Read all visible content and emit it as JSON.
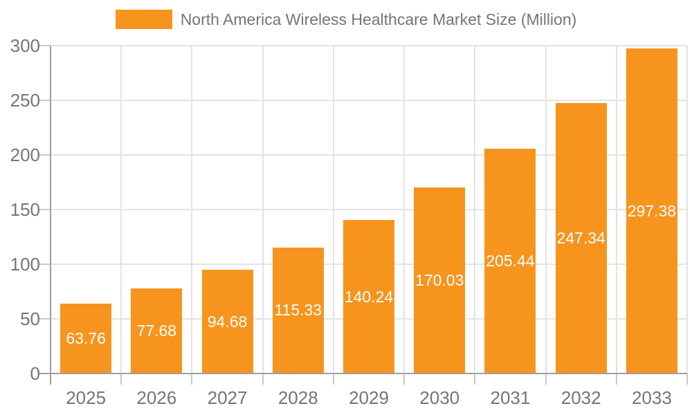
{
  "legend": {
    "label": "North America Wireless Healthcare Market Size (Million)"
  },
  "chart_data": {
    "type": "bar",
    "title": "North America Wireless Healthcare Market Size (Million)",
    "categories": [
      "2025",
      "2026",
      "2027",
      "2028",
      "2029",
      "2030",
      "2031",
      "2032",
      "2033"
    ],
    "values": [
      63.76,
      77.68,
      94.68,
      115.33,
      140.24,
      170.03,
      205.44,
      247.34,
      297.38
    ],
    "value_labels": [
      "63.76",
      "77.68",
      "94.68",
      "115.33",
      "140.24",
      "170.03",
      "205.44",
      "247.34",
      "297.38"
    ],
    "xlabel": "",
    "ylabel": "",
    "ylim": [
      0,
      300
    ],
    "yticks": [
      0,
      50,
      100,
      150,
      200,
      250,
      300
    ],
    "grid": true,
    "legend_position": "top",
    "colors": {
      "bar": "#F7941E",
      "value_label": "#FFFFFF",
      "axis": "#9E9E9E",
      "grid": "#E3E3E3",
      "tick_mark": "#C9C9C9",
      "tick_text": "#757575",
      "legend_text": "#757575",
      "background": "#FFFFFF"
    }
  }
}
